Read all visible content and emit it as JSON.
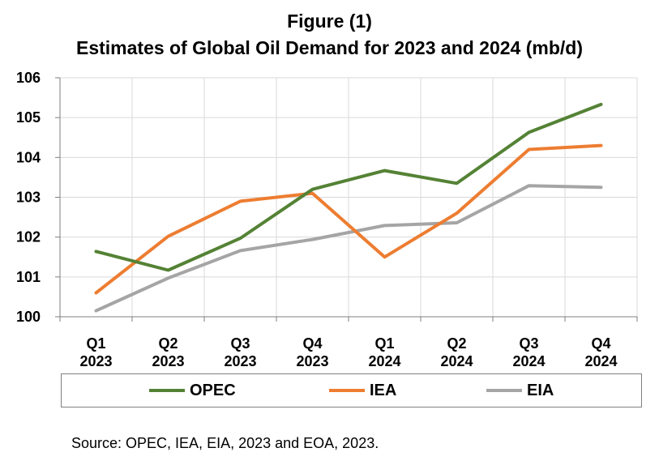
{
  "chart_data": {
    "type": "line",
    "title": "Figure (1)",
    "subtitle": "Estimates of Global Oil Demand for 2023 and 2024 (mb/d)",
    "categories": [
      [
        "Q1",
        "2023"
      ],
      [
        "Q2",
        "2023"
      ],
      [
        "Q3",
        "2023"
      ],
      [
        "Q4",
        "2023"
      ],
      [
        "Q1",
        "2024"
      ],
      [
        "Q2",
        "2024"
      ],
      [
        "Q3",
        "2024"
      ],
      [
        "Q4",
        "2024"
      ]
    ],
    "ylim": [
      100,
      106
    ],
    "yticks": [
      100,
      101,
      102,
      103,
      104,
      105,
      106
    ],
    "grid": true,
    "legend_position": "bottom",
    "series": [
      {
        "name": "OPEC",
        "color": "#548235",
        "values": [
          101.64,
          101.17,
          101.97,
          103.2,
          103.67,
          103.35,
          104.63,
          105.33
        ]
      },
      {
        "name": "IEA",
        "color": "#ed7d31",
        "values": [
          100.6,
          102.02,
          102.9,
          103.1,
          101.5,
          102.6,
          104.2,
          104.3
        ]
      },
      {
        "name": "EIA",
        "color": "#a5a5a5",
        "values": [
          100.15,
          100.97,
          101.66,
          101.94,
          102.29,
          102.36,
          103.29,
          103.25
        ]
      }
    ]
  },
  "source": "Source: OPEC, IEA, EIA, 2023 and EOA, 2023."
}
